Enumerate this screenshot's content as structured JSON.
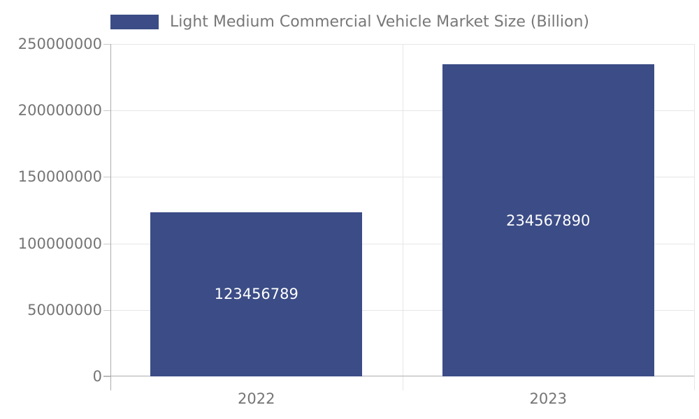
{
  "chart_data": {
    "type": "bar",
    "title": "Light Medium Commercial Vehicle Market Size (Billion)",
    "legend": [
      "Light Medium Commercial Vehicle Market Size (Billion)"
    ],
    "legend_position": "top",
    "categories": [
      "2022",
      "2023"
    ],
    "series": [
      {
        "name": "Light Medium Commercial Vehicle Market Size (Billion)",
        "values": [
          123456789,
          234567890
        ]
      }
    ],
    "value_labels": [
      "123456789",
      "234567890"
    ],
    "xlabel": "",
    "ylabel": "",
    "ylim": [
      0,
      250000000
    ],
    "ytick_interval": 50000000,
    "ytick_labels": [
      "0",
      "50000000",
      "100000000",
      "150000000",
      "200000000",
      "250000000"
    ],
    "grid": true,
    "bar_width_fraction": 0.725,
    "colors": {
      "bar": "#3B4C86",
      "grid": "#E6E6E6",
      "axis": "#ACACAC",
      "tick_label": "#757575",
      "legend_text": "#787878",
      "value_label": "#FFFFFF",
      "background": "#FFFFFF"
    }
  }
}
